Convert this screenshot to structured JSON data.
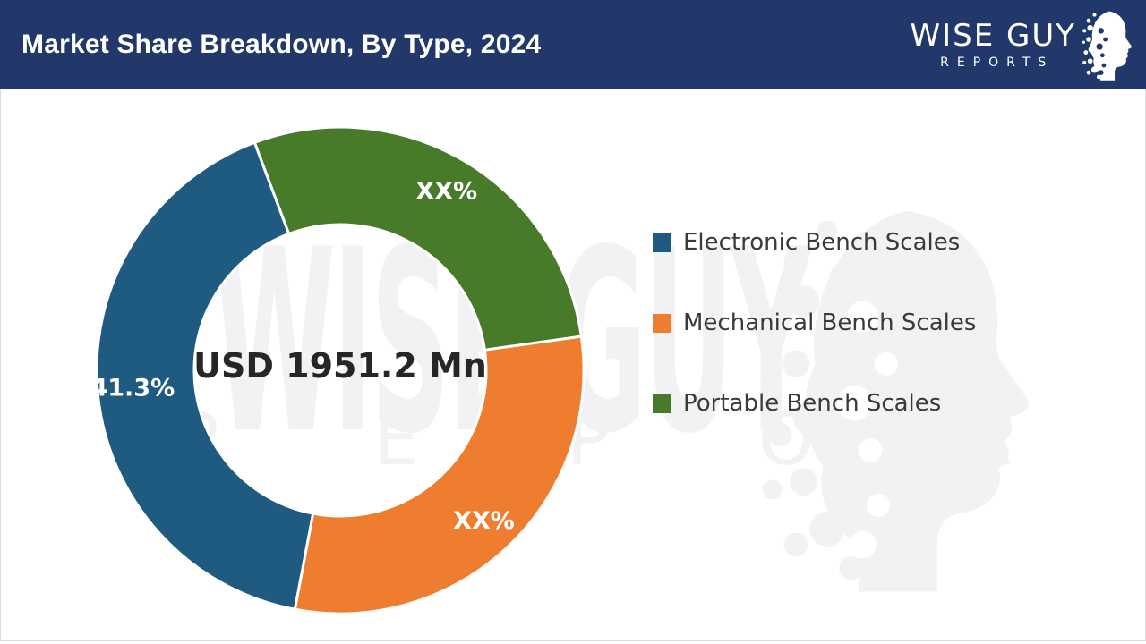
{
  "header": {
    "title": "Market Share Breakdown, By Type, 2024",
    "logo": {
      "line1": "WISE GUY",
      "line2": "REPORTS"
    }
  },
  "colors": {
    "header_bg": "#22386B",
    "title_text": "#FFFFFF",
    "center_text": "#262626",
    "legend_text": "#3A3A3A",
    "segment_label_text": "#FFFFFF",
    "watermark": "#F2F2F4"
  },
  "chart_data": {
    "type": "pie",
    "subtype": "donut",
    "title": "Market Share Breakdown, By Type, 2024",
    "center_label": "USD 1951.2 Mn",
    "start_angle_deg": 8,
    "direction": "counterclockwise",
    "inner_radius_ratio": 0.6,
    "legend_position": "right",
    "segments": [
      {
        "name": "Portable Bench Scales",
        "label": "XX%",
        "value_pct": 28.5,
        "color": "#477A29"
      },
      {
        "name": "Electronic Bench Scales",
        "label": "41.3%",
        "value_pct": 41.3,
        "color": "#1F5B80"
      },
      {
        "name": "Mechanical Bench Scales",
        "label": "XX%",
        "value_pct": 30.2,
        "color": "#EE7D30"
      }
    ]
  },
  "legend": {
    "items": [
      {
        "label": "Electronic Bench Scales",
        "color": "#1F5B80"
      },
      {
        "label": "Mechanical Bench Scales",
        "color": "#EE7D30"
      },
      {
        "label": "Portable Bench Scales",
        "color": "#477A29"
      }
    ]
  },
  "watermark": {
    "line1": "WISE GUY",
    "line2": "R E P O R T S"
  }
}
